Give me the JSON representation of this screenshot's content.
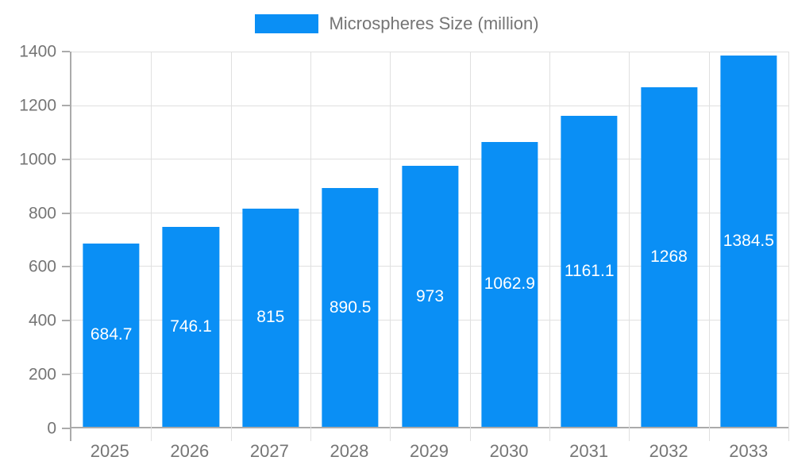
{
  "chart_data": {
    "type": "bar",
    "title": "",
    "legend": {
      "label": "Microspheres Size (million)",
      "position": "top",
      "marker": "rect"
    },
    "categories": [
      "2025",
      "2026",
      "2027",
      "2028",
      "2029",
      "2030",
      "2031",
      "2032",
      "2033"
    ],
    "series": [
      {
        "name": "Microspheres Size (million)",
        "values": [
          684.7,
          746.1,
          815,
          890.5,
          973,
          1062.9,
          1161.1,
          1268,
          1384.5
        ],
        "labels": [
          "684.7",
          "746.1",
          "815",
          "890.5",
          "973",
          "1062.9",
          "1161.1",
          "1268",
          "1384.5"
        ]
      }
    ],
    "xlabel": "",
    "ylabel": "",
    "ylim": [
      0,
      1400
    ],
    "yticks": [
      0,
      200,
      400,
      600,
      800,
      1000,
      1200,
      1400
    ],
    "grid": true,
    "bar_width_fraction": 0.71,
    "value_labels": {
      "position": "center-inside",
      "color": "#ffffff"
    },
    "colors": {
      "bar": "#0a8ff5",
      "gridline": "#e0e0e0",
      "axis_line": "#ababab",
      "axis_label": "#757575",
      "legend_text": "#757575",
      "value_label": "#ffffff",
      "background": "#ffffff"
    }
  }
}
